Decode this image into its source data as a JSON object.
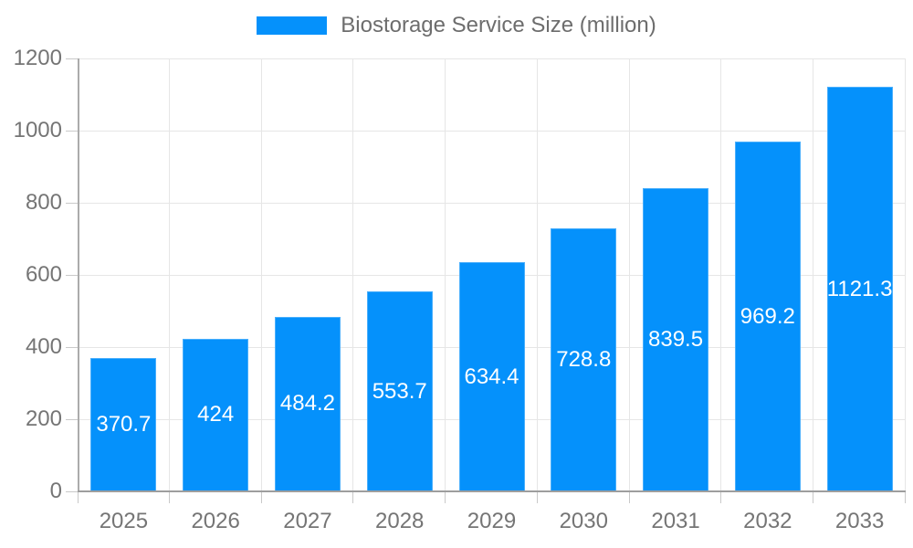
{
  "chart_data": {
    "type": "bar",
    "title": "Biostorage Service Size (million)",
    "categories": [
      "2025",
      "2026",
      "2027",
      "2028",
      "2029",
      "2030",
      "2031",
      "2032",
      "2033"
    ],
    "values": [
      370.7,
      424,
      484.2,
      553.7,
      634.4,
      728.8,
      839.5,
      969.2,
      1121.3
    ],
    "bar_labels": [
      "370.7",
      "424",
      "484.2",
      "553.7",
      "634.4",
      "728.8",
      "839.5",
      "969.2",
      "1121.3"
    ],
    "xlabel": "",
    "ylabel": "",
    "ylim": [
      0,
      1200
    ],
    "yticks": [
      0,
      200,
      400,
      600,
      800,
      1000,
      1200
    ],
    "grid": true,
    "legend_position": "top-center",
    "value_label_position": "inside-center",
    "colors": {
      "bar": "#0591fb",
      "bar_value_label": "#ffffff",
      "gridline": "#e6e6e6",
      "axis_line": "#ababab",
      "baseline": "#9e9e9e",
      "tick": "#c9c9c9",
      "axis_label_text": "#757575",
      "legend_text": "#6d6d6d",
      "background": "#ffffff"
    }
  }
}
